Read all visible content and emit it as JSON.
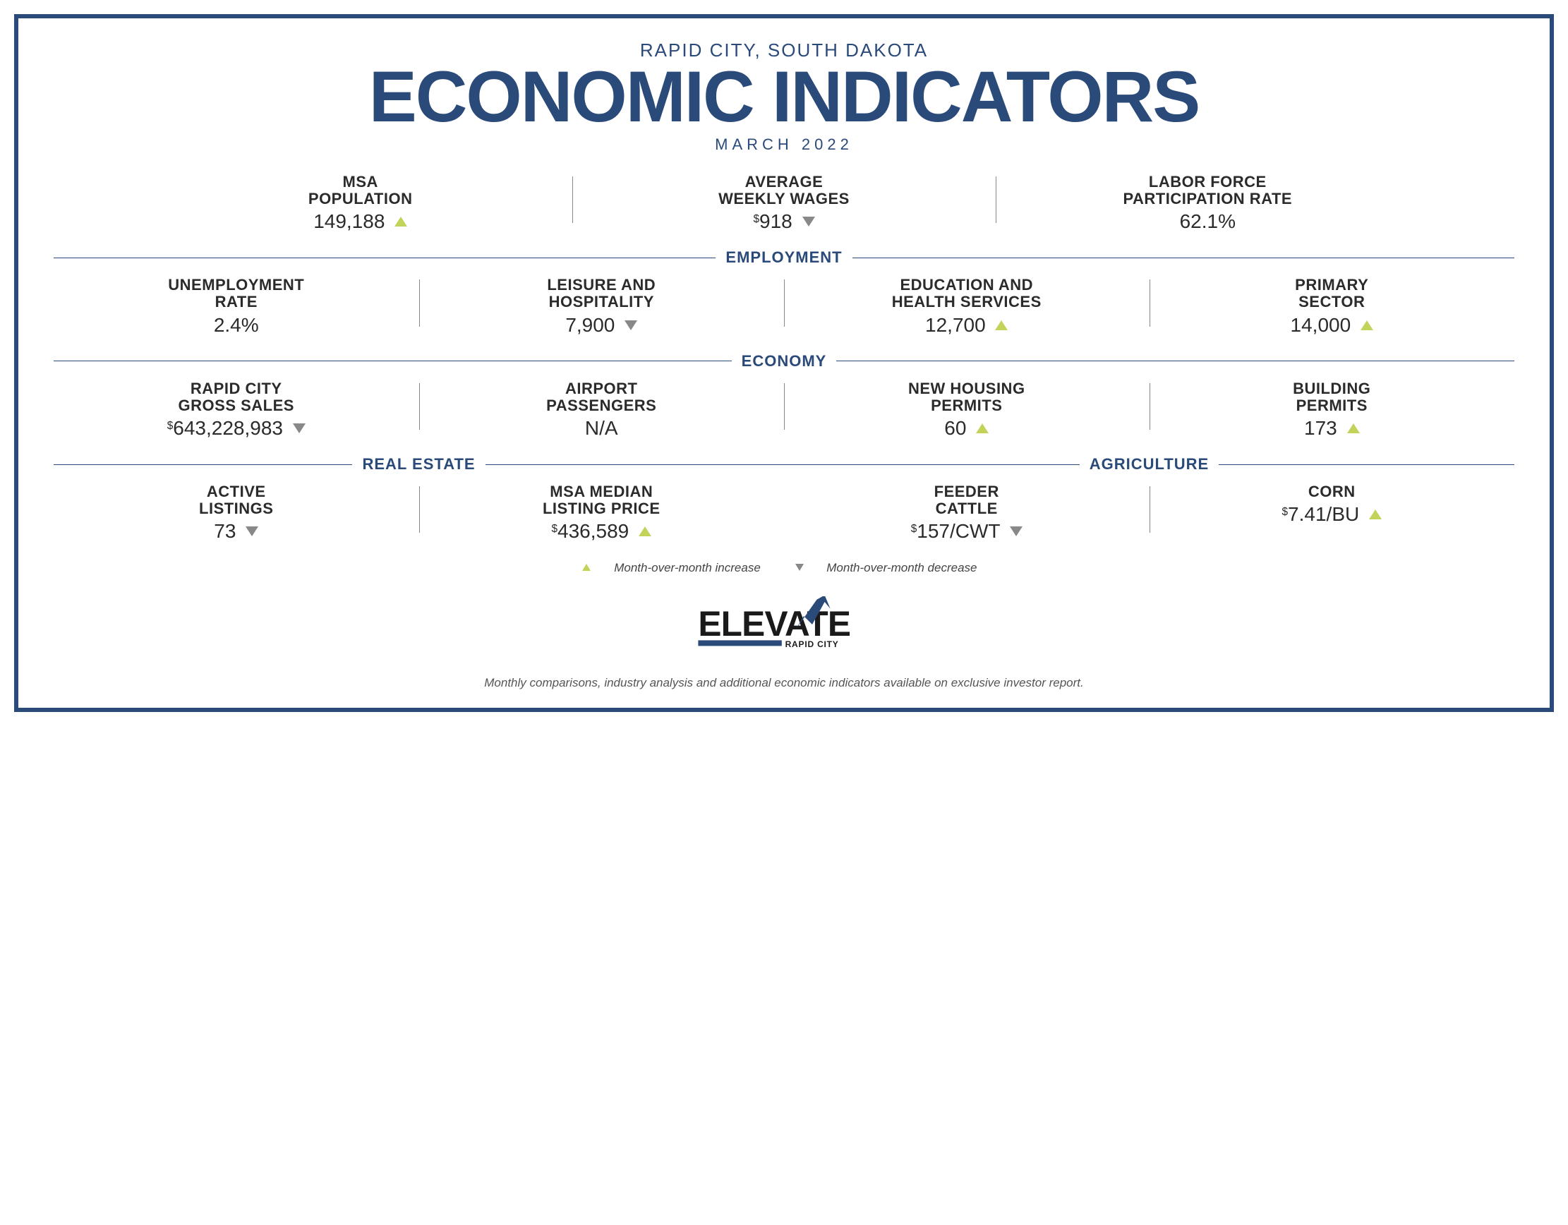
{
  "header": {
    "location": "RAPID CITY, SOUTH DAKOTA",
    "title": "ECONOMIC INDICATORS",
    "date": "MARCH 2022"
  },
  "colors": {
    "brand_navy": "#2a4a7a",
    "up_green": "#c3d35a",
    "down_gray": "#888888",
    "text_dark": "#2b2b2b"
  },
  "top_metrics": [
    {
      "label_l1": "MSA",
      "label_l2": "POPULATION",
      "value": "149,188",
      "trend": "up",
      "prefix": ""
    },
    {
      "label_l1": "AVERAGE",
      "label_l2": "WEEKLY WAGES",
      "value": "918",
      "trend": "down",
      "prefix": "$"
    },
    {
      "label_l1": "LABOR FORCE",
      "label_l2": "PARTICIPATION RATE",
      "value": "62.1%",
      "trend": "none",
      "prefix": ""
    }
  ],
  "sections": {
    "employment": {
      "title": "EMPLOYMENT",
      "items": [
        {
          "label_l1": "UNEMPLOYMENT",
          "label_l2": "RATE",
          "value": "2.4%",
          "trend": "none",
          "prefix": ""
        },
        {
          "label_l1": "LEISURE AND",
          "label_l2": "HOSPITALITY",
          "value": "7,900",
          "trend": "down",
          "prefix": ""
        },
        {
          "label_l1": "EDUCATION AND",
          "label_l2": "HEALTH SERVICES",
          "value": "12,700",
          "trend": "up",
          "prefix": ""
        },
        {
          "label_l1": "PRIMARY",
          "label_l2": "SECTOR",
          "value": "14,000",
          "trend": "up",
          "prefix": ""
        }
      ]
    },
    "economy": {
      "title": "ECONOMY",
      "items": [
        {
          "label_l1": "RAPID CITY",
          "label_l2": "GROSS SALES",
          "value": "643,228,983",
          "trend": "down",
          "prefix": "$"
        },
        {
          "label_l1": "AIRPORT",
          "label_l2": "PASSENGERS",
          "value": "N/A",
          "trend": "none",
          "prefix": ""
        },
        {
          "label_l1": "NEW HOUSING",
          "label_l2": "PERMITS",
          "value": "60",
          "trend": "up",
          "prefix": ""
        },
        {
          "label_l1": "BUILDING",
          "label_l2": "PERMITS",
          "value": "173",
          "trend": "up",
          "prefix": ""
        }
      ]
    },
    "real_estate": {
      "title": "REAL ESTATE",
      "items": [
        {
          "label_l1": "ACTIVE",
          "label_l2": "LISTINGS",
          "value": "73",
          "trend": "down",
          "prefix": ""
        },
        {
          "label_l1": "MSA MEDIAN",
          "label_l2": "LISTING PRICE",
          "value": "436,589",
          "trend": "up",
          "prefix": "$"
        }
      ]
    },
    "agriculture": {
      "title": "AGRICULTURE",
      "items": [
        {
          "label_l1": "FEEDER",
          "label_l2": "CATTLE",
          "value": "157/CWT",
          "trend": "down",
          "prefix": "$"
        },
        {
          "label_l1": "",
          "label_l2": "CORN",
          "value": "7.41/BU",
          "trend": "up",
          "prefix": "$"
        }
      ]
    }
  },
  "legend": {
    "increase": "Month-over-month increase",
    "decrease": "Month-over-month decrease"
  },
  "logo": {
    "text": "ELEVATE",
    "sub": "RAPID CITY"
  },
  "footer": "Monthly comparisons, industry analysis and additional economic indicators available on exclusive investor report."
}
